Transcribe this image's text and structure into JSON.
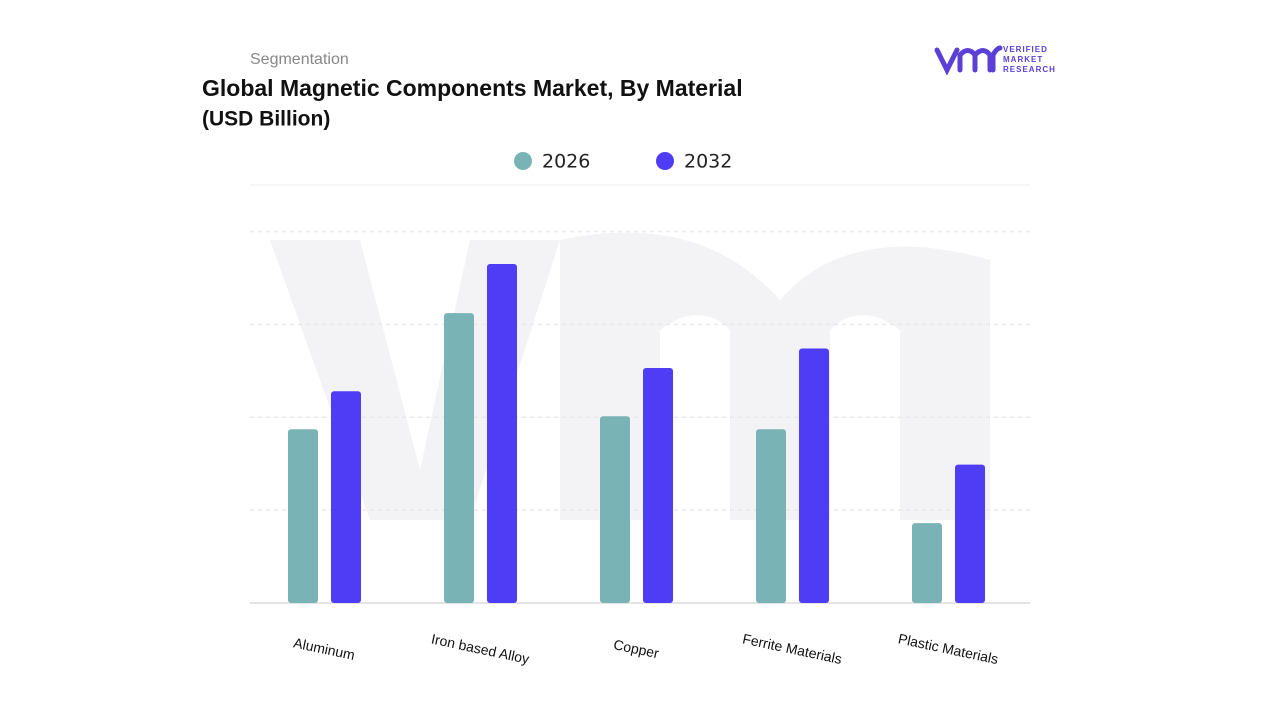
{
  "chart_data": {
    "type": "bar",
    "kicker": "Segmentation",
    "title": "Global Magnetic Components Market, By Material",
    "subtitle": "(USD Billion)",
    "brand": [
      "VERIFIED",
      "MARKET",
      "RESEARCH"
    ],
    "categories": [
      "Aluminum",
      "Iron based Alloy",
      "Copper",
      "Ferrite Materials",
      "Plastic Materials"
    ],
    "series": [
      {
        "name": "2026",
        "color": "#7ab3b6",
        "values": [
          1.87,
          3.12,
          2.01,
          1.87,
          0.86
        ]
      },
      {
        "name": "2032",
        "color": "#4f3cf5",
        "values": [
          2.28,
          3.65,
          2.53,
          2.74,
          1.49
        ]
      }
    ],
    "ylim": [
      0,
      4.5
    ],
    "gridlines": [
      0,
      1,
      2,
      3,
      4
    ],
    "grid": true
  }
}
